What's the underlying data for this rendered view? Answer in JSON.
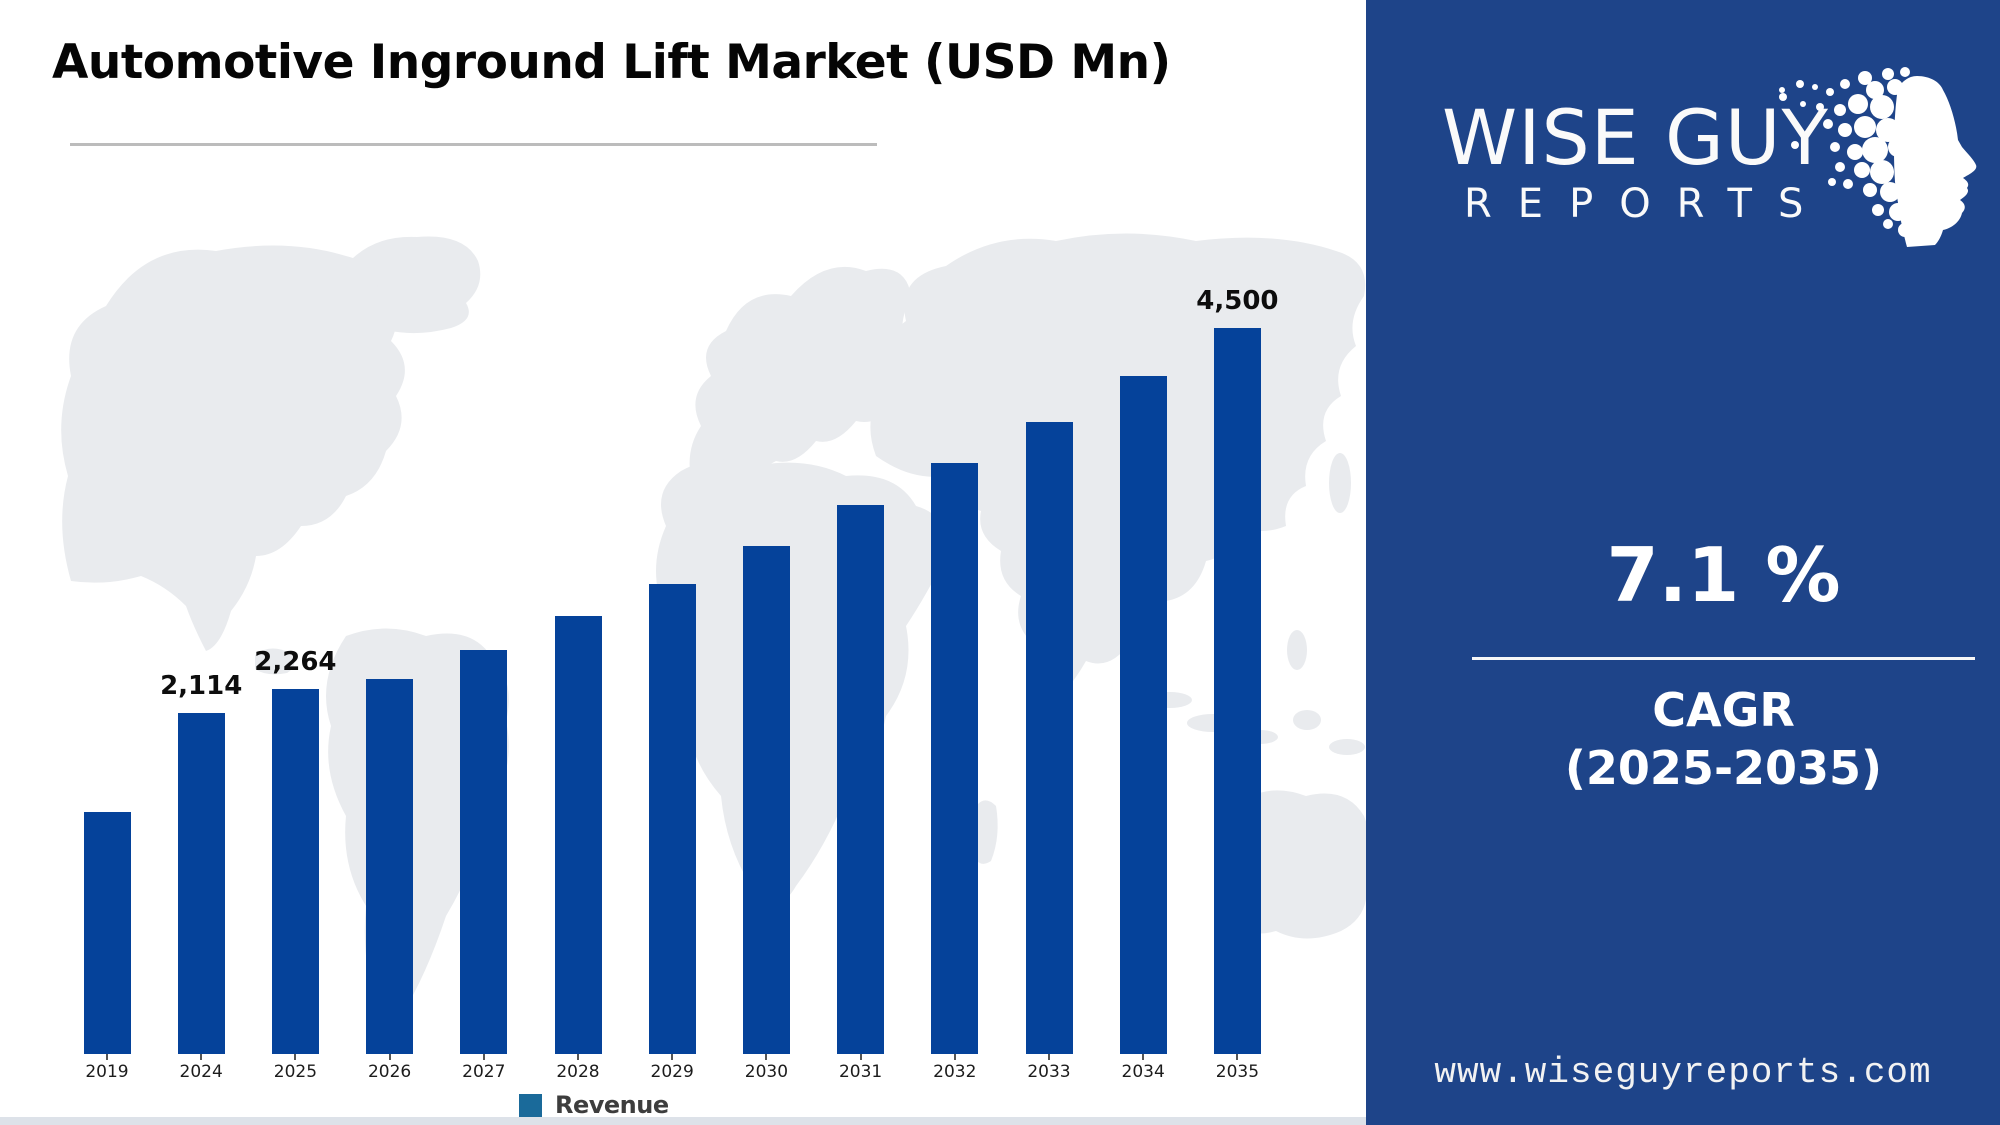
{
  "title": "Automotive Inground Lift Market (USD Mn)",
  "chart_data": {
    "type": "bar",
    "title": "Automotive Inground Lift Market (USD Mn)",
    "series_name": "Revenue",
    "bar_color": "#05429a",
    "categories": [
      "2019",
      "2024",
      "2025",
      "2026",
      "2027",
      "2028",
      "2029",
      "2030",
      "2031",
      "2032",
      "2033",
      "2034",
      "2035"
    ],
    "values": [
      1500,
      2114,
      2264,
      2325,
      2505,
      2715,
      2915,
      3150,
      3405,
      3665,
      3920,
      4205,
      4500
    ],
    "bars": [
      {
        "year": "2019",
        "value": 1500,
        "label": ""
      },
      {
        "year": "2024",
        "value": 2114,
        "label": "2,114"
      },
      {
        "year": "2025",
        "value": 2264,
        "label": "2,264"
      },
      {
        "year": "2026",
        "value": 2325,
        "label": ""
      },
      {
        "year": "2027",
        "value": 2505,
        "label": ""
      },
      {
        "year": "2028",
        "value": 2715,
        "label": ""
      },
      {
        "year": "2029",
        "value": 2915,
        "label": ""
      },
      {
        "year": "2030",
        "value": 3150,
        "label": ""
      },
      {
        "year": "2031",
        "value": 3405,
        "label": ""
      },
      {
        "year": "2032",
        "value": 3665,
        "label": ""
      },
      {
        "year": "2033",
        "value": 3920,
        "label": ""
      },
      {
        "year": "2034",
        "value": 4205,
        "label": ""
      },
      {
        "year": "2035",
        "value": 4500,
        "label": "4,500"
      }
    ],
    "ylim": [
      0,
      4800
    ],
    "grid": false,
    "legend_position": "bottom"
  },
  "legend": {
    "label": "Revenue",
    "swatch_color": "#1a6a9a"
  },
  "sidebar": {
    "background_color": "#1e4489",
    "logo": {
      "line1": "WISE GUY",
      "line2": "REPORTS"
    },
    "cagr_value": "7.1 %",
    "cagr_label_line1": "CAGR",
    "cagr_label_line2": "(2025-2035)",
    "website": "www.wiseguyreports.com"
  }
}
